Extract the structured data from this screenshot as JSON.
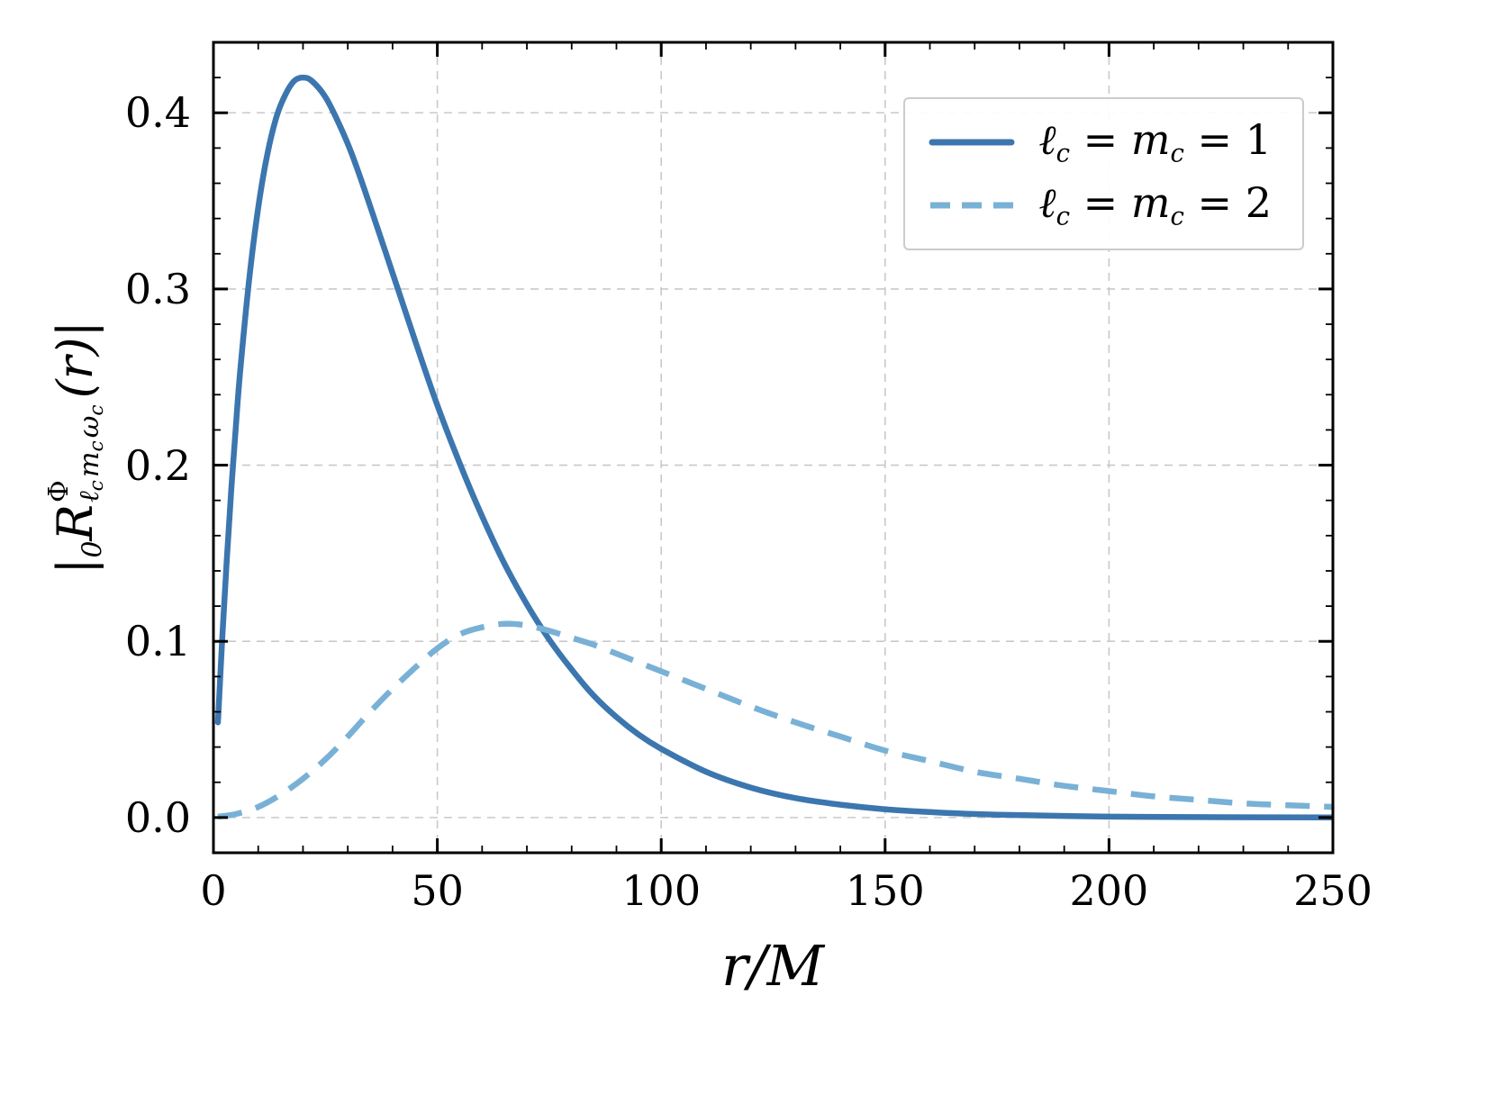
{
  "figure": {
    "background": "#ffffff"
  },
  "chart_data": {
    "type": "line",
    "title": "",
    "xlabel": "r/M",
    "ylabel": "|0R^Phi_{lc mc wc}(r)|",
    "xlim": [
      0,
      250
    ],
    "ylim": [
      -0.02,
      0.44
    ],
    "x_ticks": [
      0,
      50,
      100,
      150,
      200,
      250
    ],
    "x_tick_labels": [
      "0",
      "50",
      "100",
      "150",
      "200",
      "250"
    ],
    "y_ticks": [
      0,
      0.1,
      0.2,
      0.3,
      0.4
    ],
    "y_tick_labels": [
      "0.0",
      "0.1",
      "0.2",
      "0.3",
      "0.4"
    ],
    "x_minor_step": 10,
    "y_minor_step": 0.02,
    "grid": true,
    "grid_color": "#c9c9c9",
    "legend_position": "upper right",
    "series": [
      {
        "name": "lc = mc = 1",
        "style": "solid",
        "color": "#3c76af",
        "points": [
          [
            1,
            0.054
          ],
          [
            2,
            0.103
          ],
          [
            3,
            0.147
          ],
          [
            4,
            0.187
          ],
          [
            5,
            0.222
          ],
          [
            6,
            0.254
          ],
          [
            8,
            0.306
          ],
          [
            10,
            0.346
          ],
          [
            12,
            0.376
          ],
          [
            14,
            0.397
          ],
          [
            16,
            0.41
          ],
          [
            18,
            0.418
          ],
          [
            20,
            0.42
          ],
          [
            22,
            0.418
          ],
          [
            25,
            0.409
          ],
          [
            28,
            0.394
          ],
          [
            31,
            0.376
          ],
          [
            35,
            0.347
          ],
          [
            40,
            0.309
          ],
          [
            45,
            0.271
          ],
          [
            50,
            0.234
          ],
          [
            55,
            0.201
          ],
          [
            60,
            0.171
          ],
          [
            65,
            0.144
          ],
          [
            70,
            0.121
          ],
          [
            75,
            0.101
          ],
          [
            80,
            0.084
          ],
          [
            85,
            0.069
          ],
          [
            90,
            0.057
          ],
          [
            95,
            0.047
          ],
          [
            100,
            0.039
          ],
          [
            110,
            0.026
          ],
          [
            120,
            0.017
          ],
          [
            130,
            0.011
          ],
          [
            140,
            0.0073
          ],
          [
            150,
            0.0047
          ],
          [
            160,
            0.0031
          ],
          [
            175,
            0.0016
          ],
          [
            200,
            0.0005
          ],
          [
            225,
            0.0002
          ],
          [
            250,
            0.0001
          ]
        ]
      },
      {
        "name": "lc = mc = 2",
        "style": "dashed",
        "color": "#79b1d6",
        "points": [
          [
            1,
            0.0005
          ],
          [
            5,
            0.002
          ],
          [
            10,
            0.006
          ],
          [
            15,
            0.013
          ],
          [
            20,
            0.022
          ],
          [
            25,
            0.033
          ],
          [
            30,
            0.046
          ],
          [
            35,
            0.06
          ],
          [
            40,
            0.073
          ],
          [
            45,
            0.085
          ],
          [
            50,
            0.096
          ],
          [
            55,
            0.104
          ],
          [
            60,
            0.108
          ],
          [
            65,
            0.11
          ],
          [
            70,
            0.109
          ],
          [
            75,
            0.106
          ],
          [
            80,
            0.102
          ],
          [
            85,
            0.098
          ],
          [
            90,
            0.093
          ],
          [
            95,
            0.088
          ],
          [
            100,
            0.083
          ],
          [
            110,
            0.073
          ],
          [
            120,
            0.063
          ],
          [
            130,
            0.054
          ],
          [
            140,
            0.046
          ],
          [
            150,
            0.038
          ],
          [
            160,
            0.032
          ],
          [
            170,
            0.026
          ],
          [
            180,
            0.022
          ],
          [
            190,
            0.018
          ],
          [
            200,
            0.015
          ],
          [
            210,
            0.012
          ],
          [
            220,
            0.01
          ],
          [
            230,
            0.008
          ],
          [
            240,
            0.007
          ],
          [
            250,
            0.006
          ]
        ]
      }
    ]
  },
  "xlabel_rich": {
    "text": "r/M"
  },
  "ylabel_rich": {
    "bar_left": "|",
    "presub": "0",
    "base": "R",
    "sup": "Φ",
    "sub_l": "ℓ",
    "sub_lc": "c",
    "sub_m": "m",
    "sub_mc": "c",
    "sub_w": "ω",
    "sub_wc": "c",
    "arg": "(r)",
    "bar_right": "|"
  },
  "legend": {
    "items": [
      {
        "parts": [
          "ℓ",
          "c",
          " = ",
          "m",
          "c",
          " = ",
          "1"
        ]
      },
      {
        "parts": [
          "ℓ",
          "c",
          " = ",
          "m",
          "c",
          " = ",
          "2"
        ]
      }
    ]
  }
}
